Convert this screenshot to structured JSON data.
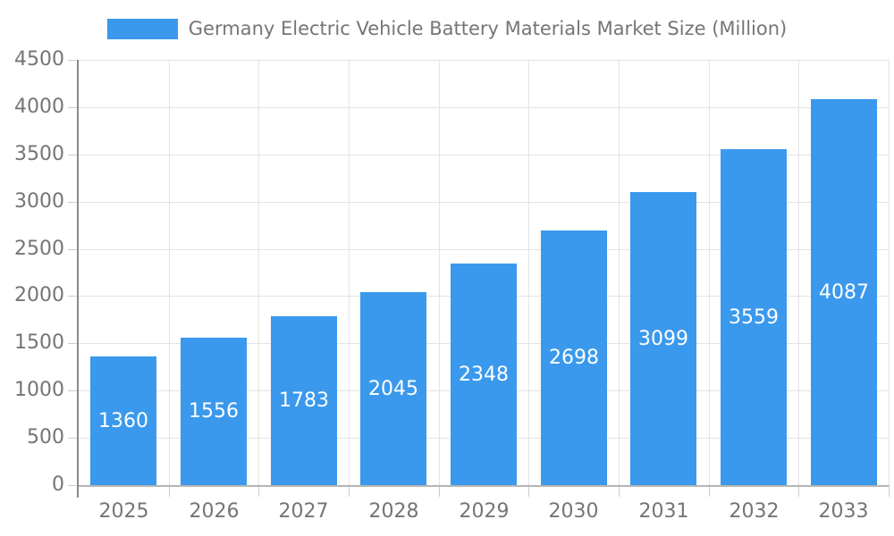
{
  "chart_data": {
    "type": "bar",
    "title": "Germany Electric Vehicle Battery Materials Market Size (Million)",
    "categories": [
      "2025",
      "2026",
      "2027",
      "2028",
      "2029",
      "2030",
      "2031",
      "2032",
      "2033"
    ],
    "values": [
      1360,
      1556,
      1783,
      2045,
      2348,
      2698,
      3099,
      3559,
      4087
    ],
    "xlabel": "",
    "ylabel": "",
    "ylim": [
      0,
      4500
    ],
    "ytick_step": 500,
    "grid": true,
    "bar_labels_visible": true,
    "legend": {
      "position": "top",
      "label": "Germany Electric Vehicle Battery Materials Market Size (Million)"
    },
    "colors": {
      "bar": "#3a99ec",
      "bar_label_text": "#ffffff",
      "axis_text": "#757575",
      "gridline": "#e3e3e3",
      "y_axis_line": "#8a8a8a",
      "x_axis_line": "#b5b5b5",
      "tick": "#cccccc",
      "background": "#ffffff"
    }
  }
}
